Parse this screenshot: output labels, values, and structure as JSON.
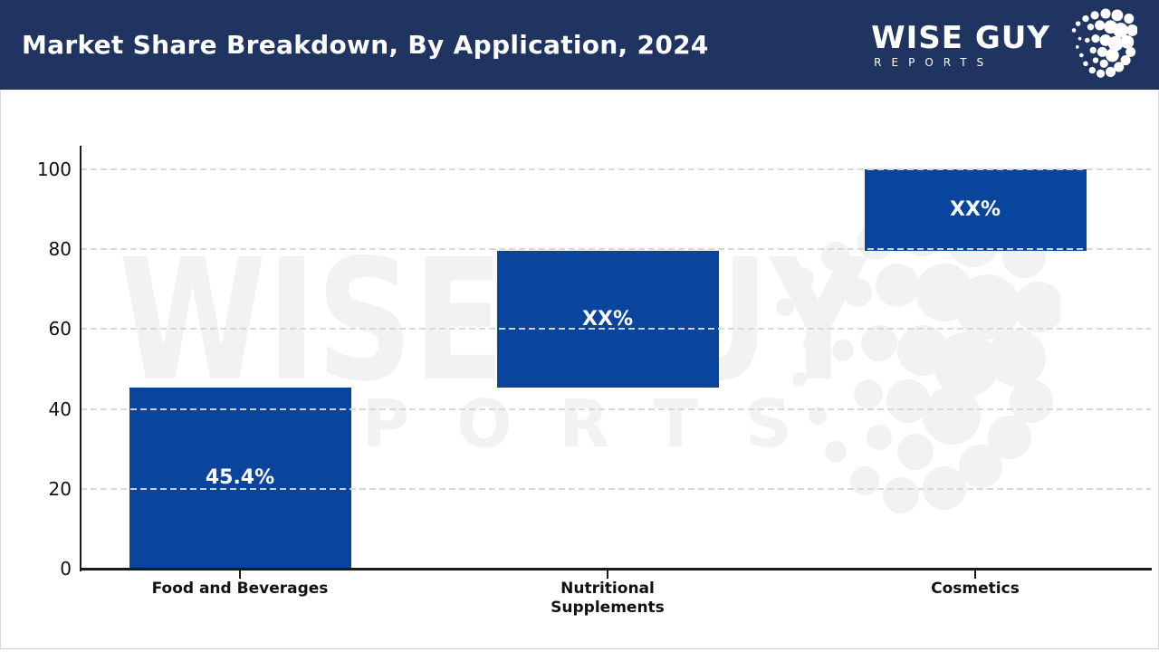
{
  "header": {
    "title": "Market Share Breakdown, By Application, 2024",
    "bg_color": "#1f3460",
    "logo": {
      "line1": "WISE GUY",
      "line2": "REPORTS"
    }
  },
  "watermark": {
    "line1": "WISE GUY",
    "line2": "REPORTS"
  },
  "chart_data": {
    "type": "bar",
    "subtype": "waterfall",
    "title": "Market Share Breakdown, By Application, 2024",
    "categories": [
      "Food and Beverages",
      "Nutritional\nSupplements",
      "Cosmetics"
    ],
    "segments": [
      {
        "category": "Food and Beverages",
        "start": 0,
        "end": 45.4,
        "label": "45.4%"
      },
      {
        "category": "Nutritional Supplements",
        "start": 45.4,
        "end": 79.5,
        "label": "XX%"
      },
      {
        "category": "Cosmetics",
        "start": 79.5,
        "end": 100,
        "label": "XX%"
      }
    ],
    "yticks": [
      0,
      20,
      40,
      60,
      80,
      100
    ],
    "ylim": [
      0,
      105
    ],
    "xlabel": "",
    "ylabel": "",
    "grid": "horizontal-dashed",
    "legend": "none",
    "bar_color": "#0a459d",
    "bar_label_color": "#ffffff",
    "axis_color": "#1a1a1a",
    "grid_color": "#d7d7d7",
    "watermark_color": "#f2f2f2"
  }
}
